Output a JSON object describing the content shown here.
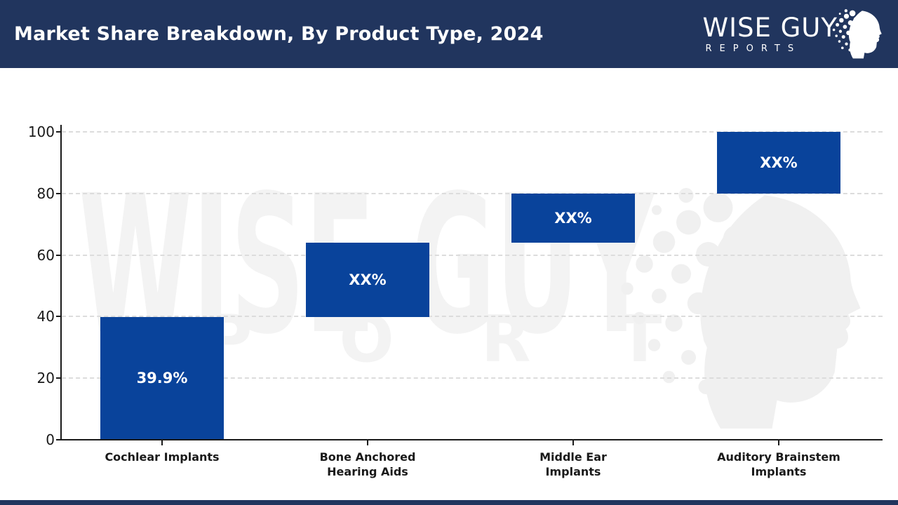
{
  "header": {
    "title": "Market Share Breakdown, By Product Type, 2024",
    "logo": {
      "line1": "WISE GUY",
      "line2": "REPORTS"
    }
  },
  "watermark": {
    "line1": "WISE GUY",
    "line2": "P O R T S"
  },
  "chart_data": {
    "type": "bar",
    "variant": "waterfall",
    "title": "Market Share Breakdown, By Product Type, 2024",
    "categories": [
      "Cochlear Implants",
      "Bone Anchored\nHearing Aids",
      "Middle Ear\nImplants",
      "Auditory Brainstem\nImplants"
    ],
    "bars": [
      {
        "category": "Cochlear Implants",
        "value_label": "39.9%",
        "start": 0,
        "end": 39.9,
        "value": 39.9
      },
      {
        "category": "Bone Anchored Hearing Aids",
        "value_label": "XX%",
        "start": 39.9,
        "end": 64,
        "value": 24.1
      },
      {
        "category": "Middle Ear Implants",
        "value_label": "XX%",
        "start": 64,
        "end": 80,
        "value": 16
      },
      {
        "category": "Auditory Brainstem Implants",
        "value_label": "XX%",
        "start": 80,
        "end": 100,
        "value": 20
      }
    ],
    "ylim": [
      0,
      100
    ],
    "yticks": [
      0,
      20,
      40,
      60,
      80,
      100
    ],
    "xlabel": "",
    "ylabel": "",
    "grid": "dashed-horizontal",
    "legend": "none",
    "colors": {
      "bar": "#09439b",
      "grid": "#dcdcdc",
      "axis": "#1a1a1a",
      "value_text": "#ffffff",
      "header_bg": "#21355e",
      "watermark": "#f2f2f2"
    }
  }
}
